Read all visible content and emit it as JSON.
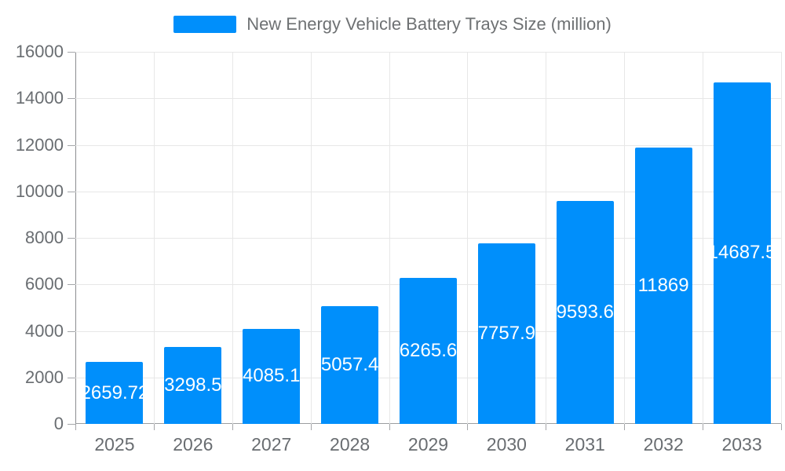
{
  "legend": {
    "label": "New Energy Vehicle Battery Trays Size (million)",
    "marker_color": "#008FFB"
  },
  "chart_data": {
    "type": "bar",
    "title": "New Energy Vehicle Battery Trays Size (million)",
    "categories": [
      "2025",
      "2026",
      "2027",
      "2028",
      "2029",
      "2030",
      "2031",
      "2032",
      "2033"
    ],
    "values": [
      2659.72,
      3298.5,
      4085.1,
      5057.4,
      6265.6,
      7757.9,
      9593.6,
      11869,
      14687.5
    ],
    "bar_labels": [
      "2659.72",
      "3298.5",
      "4085.1",
      "5057.4",
      "6265.6",
      "7757.9",
      "9593.6",
      "11869",
      "14687.5"
    ],
    "xlabel": "",
    "ylabel": "",
    "ylim": [
      0,
      16000
    ],
    "yticks": [
      0,
      2000,
      4000,
      6000,
      8000,
      10000,
      12000,
      14000,
      16000
    ],
    "grid": true,
    "legend_position": "top",
    "colors": {
      "bar": "#008FFB",
      "bar_label_text": "#ffffff",
      "gridline": "#e7e7e7",
      "axis_line": "#8b8d90",
      "tick": "#a5a7aa",
      "axis_label_text": "#696d71",
      "legend_text": "#6e7173"
    }
  }
}
